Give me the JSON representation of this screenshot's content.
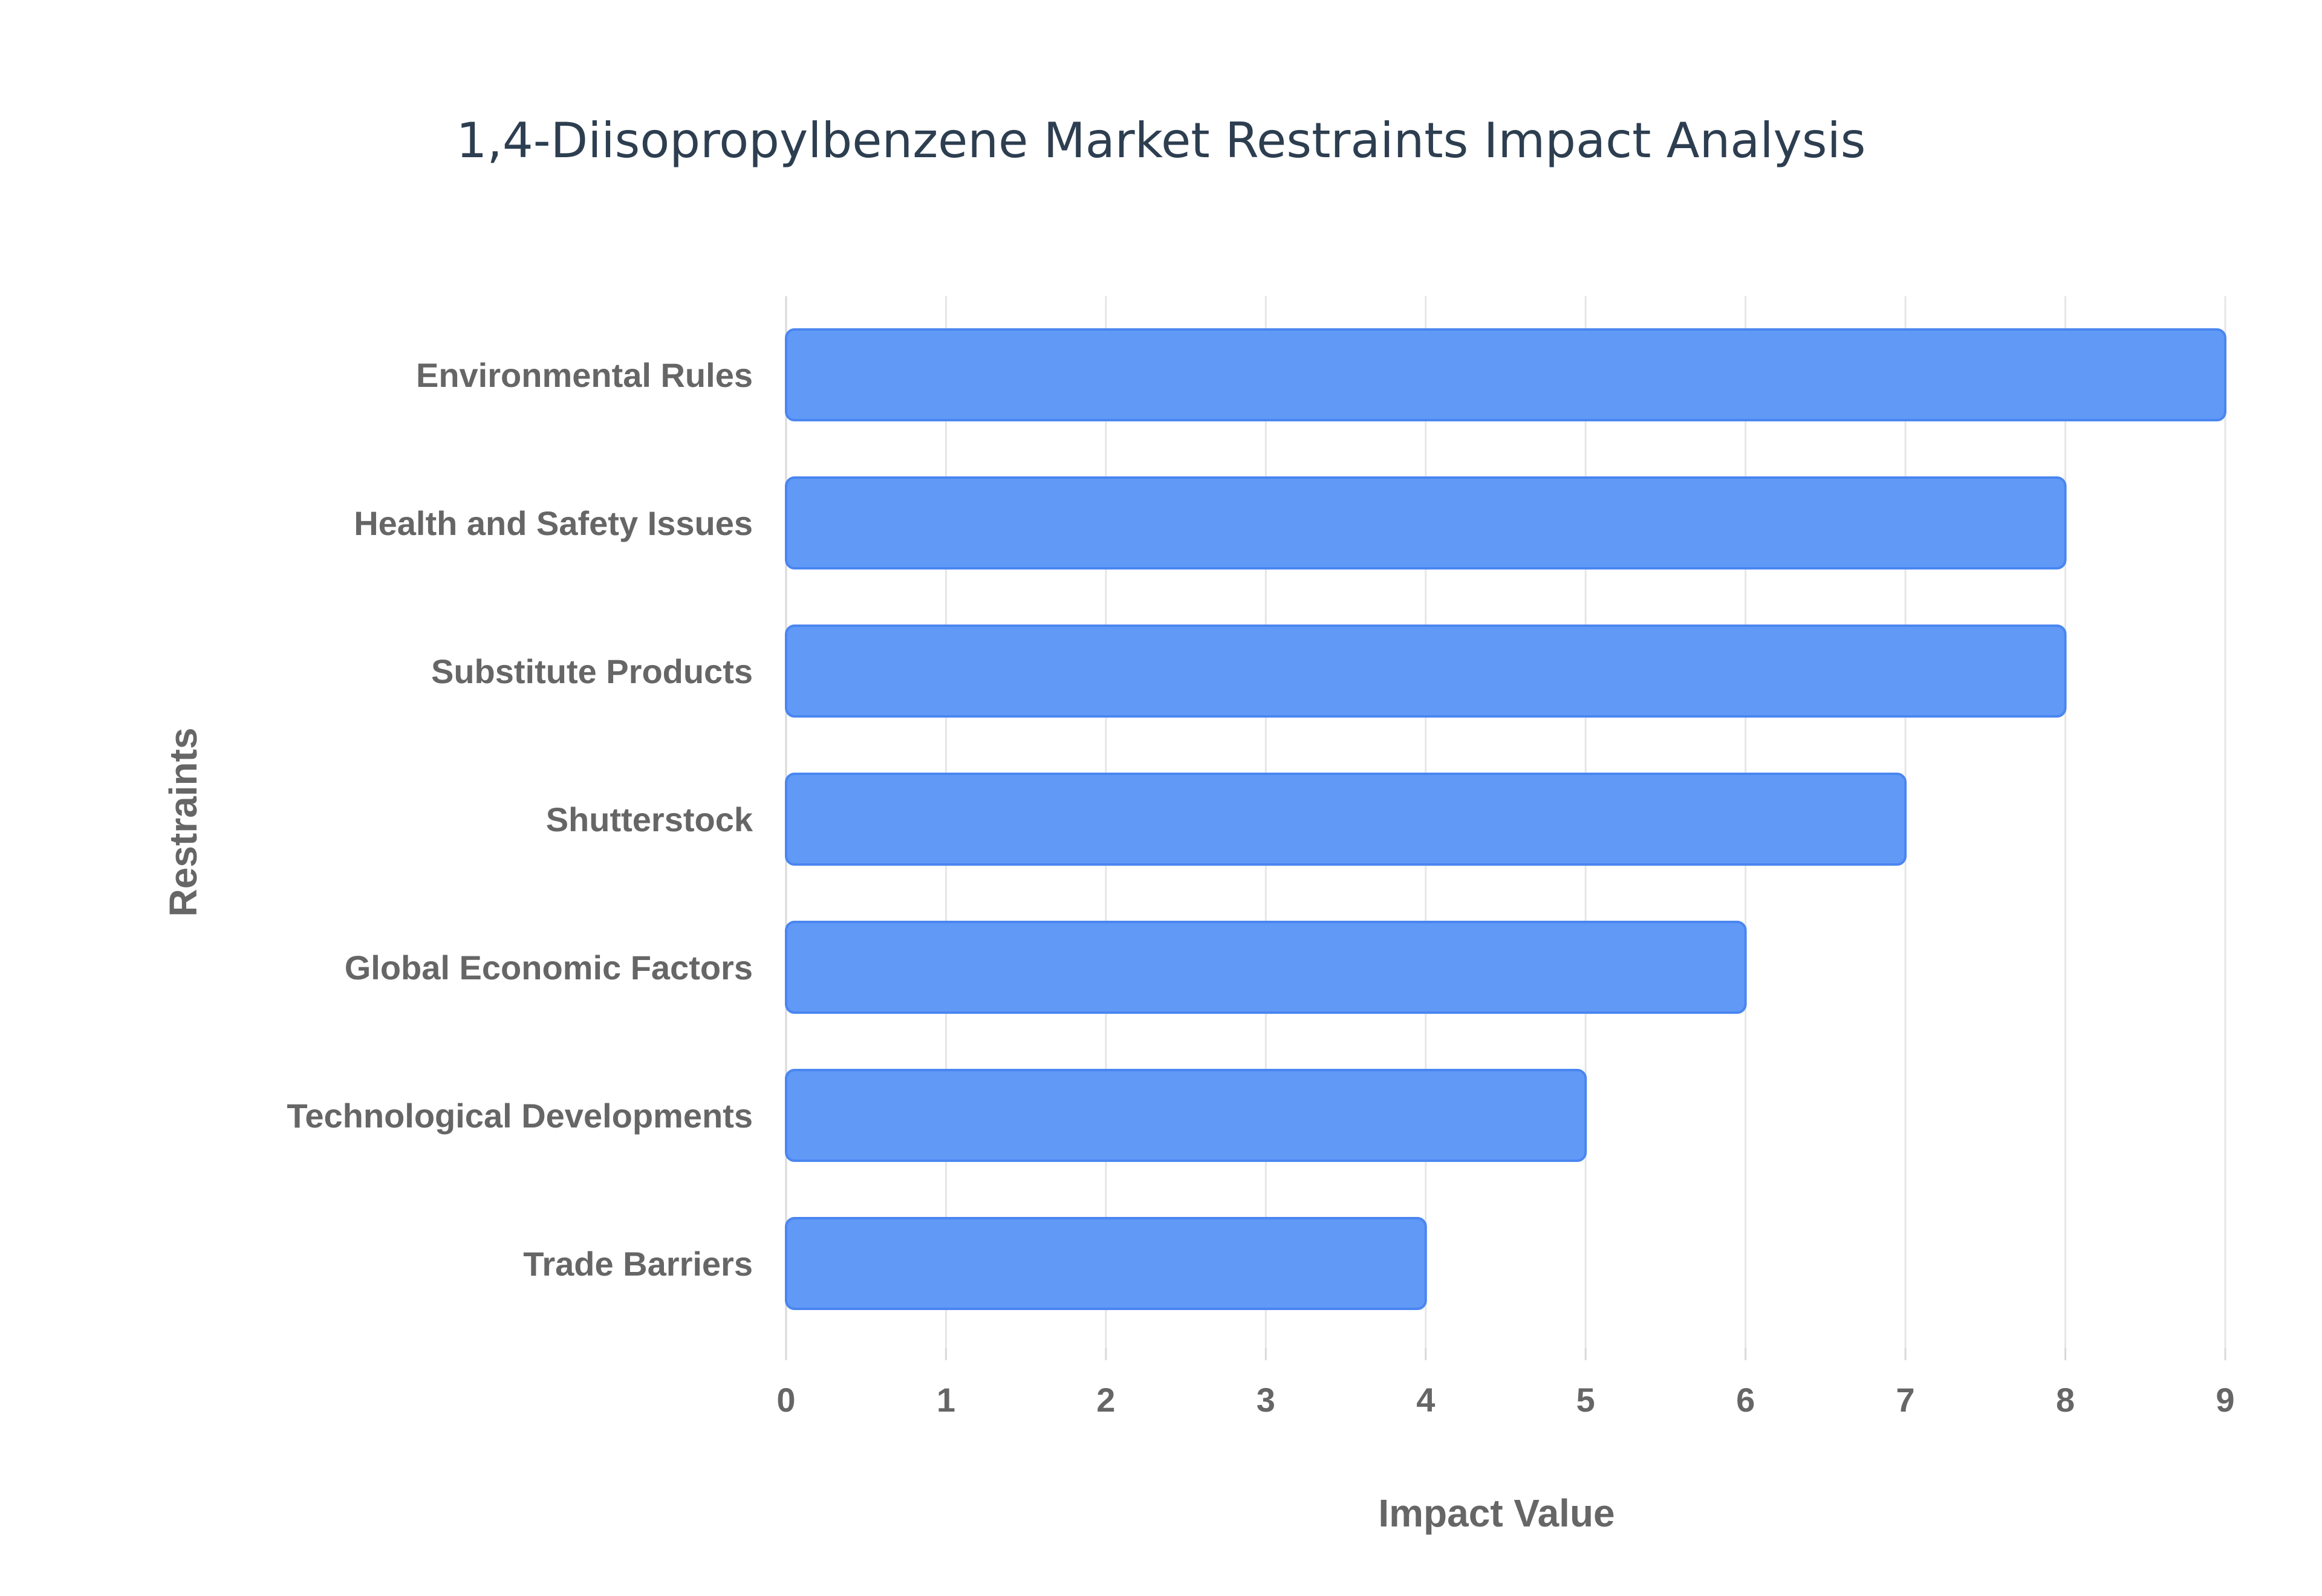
{
  "chart_data": {
    "type": "bar",
    "orientation": "horizontal",
    "title": "1,4-Diisopropylbenzene Market Restraints Impact Analysis",
    "xlabel": "Impact Value",
    "ylabel": "Restraints",
    "categories": [
      "Environmental Rules",
      "Health and Safety Issues",
      "Substitute Products",
      "Shutterstock",
      "Global Economic Factors",
      "Technological Developments",
      "Trade Barriers"
    ],
    "values": [
      9,
      8,
      8,
      7,
      6,
      5,
      4
    ],
    "xlim": [
      0,
      9
    ],
    "xticks": [
      0,
      1,
      2,
      3,
      4,
      5,
      6,
      7,
      8,
      9
    ],
    "grid": true,
    "legend": "none",
    "colors": {
      "bar_fill": "#6199f7",
      "bar_stroke": "#4a86f0",
      "title": "#2d3e50",
      "text": "#666666",
      "grid": "#e6e6e6"
    }
  }
}
